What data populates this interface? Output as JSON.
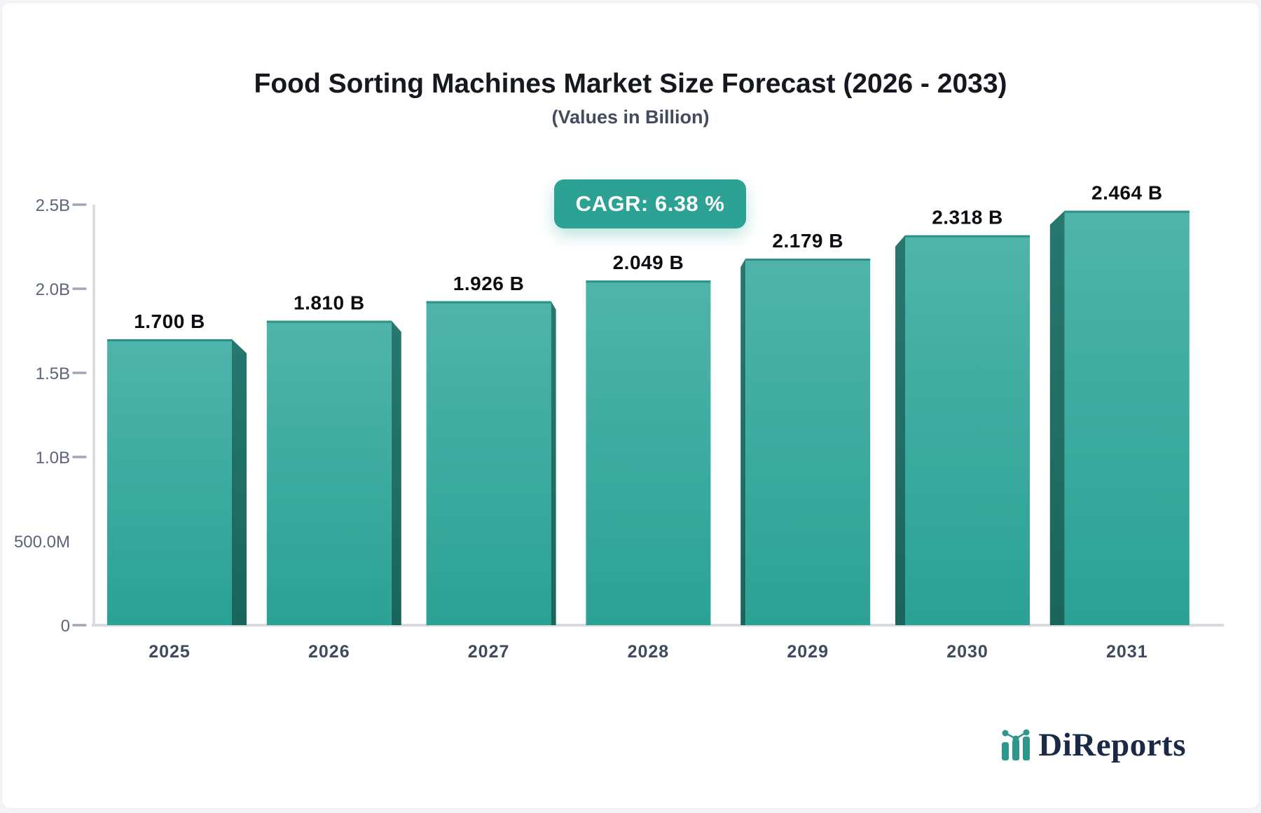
{
  "header": {
    "title": "Food Sorting Machines Market Size Forecast (2026 - 2033)",
    "subtitle": "(Values in Billion)"
  },
  "badge": {
    "label": "CAGR: 6.38 %"
  },
  "logo": {
    "text": "DiReports",
    "icon": "mini-bar-line-chart-icon"
  },
  "chart_data": {
    "type": "bar",
    "title": "Food Sorting Machines Market Size Forecast (2026 - 2033)",
    "subtitle": "(Values in Billion)",
    "categories": [
      "2025",
      "2026",
      "2027",
      "2028",
      "2029",
      "2030",
      "2031"
    ],
    "values_billion": [
      1.7,
      1.81,
      1.926,
      2.049,
      2.179,
      2.318,
      2.464
    ],
    "value_labels": [
      "1.700 B",
      "1.810 B",
      "1.926 B",
      "2.049 B",
      "2.179 B",
      "2.318 B",
      "2.464 B"
    ],
    "yticks": [
      {
        "label": "0",
        "value": 0.0,
        "dash": true
      },
      {
        "label": "500.0M",
        "value": 0.5,
        "dash": false
      },
      {
        "label": "1.0B",
        "value": 1.0,
        "dash": true
      },
      {
        "label": "1.5B",
        "value": 1.5,
        "dash": true
      },
      {
        "label": "2.0B",
        "value": 2.0,
        "dash": true
      },
      {
        "label": "2.5B",
        "value": 2.5,
        "dash": true
      }
    ],
    "ylim_billion": [
      0,
      2.5
    ],
    "cagr_percent": "6.38",
    "grid": false,
    "legend": false
  },
  "colors": {
    "accent": "#2BA294",
    "bar_face_top": "#4FB4AA",
    "bar_face_bottom": "#2AA294",
    "bar_top_edge": "#2E9187",
    "bar_side_top": "#26786E",
    "bar_side_bottom": "#1A655C",
    "axis_line": "#D8DAE1",
    "tick_dash": "#9FA6B4",
    "tick_text": "#5B6578",
    "category_text": "#3F4A5F",
    "value_text": "#0B0D11",
    "title_text": "#15181E",
    "subtitle_text": "#424C5E",
    "badge_bg": "#2BA294",
    "badge_text": "#FFFFFF",
    "logo_text": "#1A2A46",
    "logo_icon": "#2E968C"
  }
}
